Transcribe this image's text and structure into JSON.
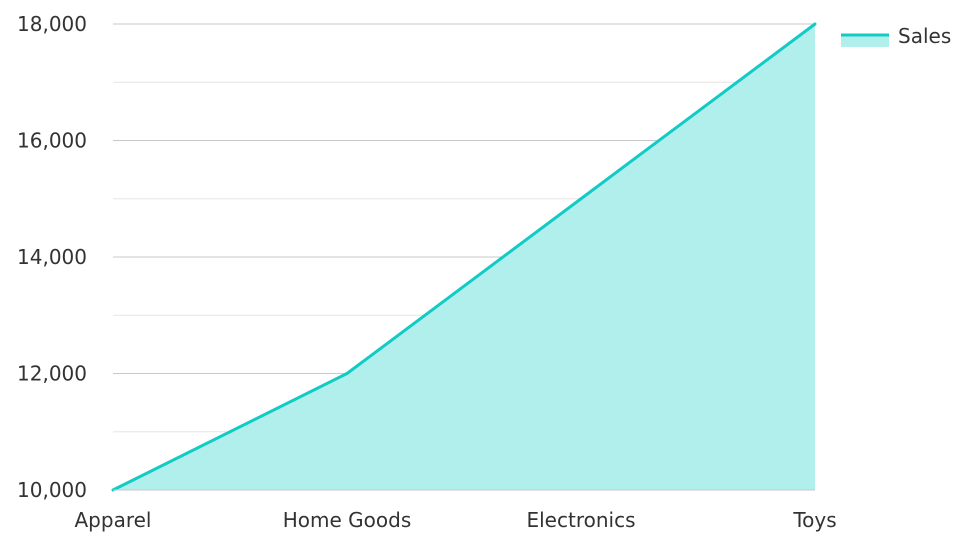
{
  "chart_data": {
    "type": "area",
    "categories": [
      "Apparel",
      "Home Goods",
      "Electronics",
      "Toys"
    ],
    "series": [
      {
        "name": "Sales",
        "values": [
          10000,
          12000,
          15000,
          18000
        ],
        "color": "#12cbc4",
        "fill": "#b1efed"
      }
    ],
    "title": "",
    "xlabel": "",
    "ylabel": "",
    "ylim": [
      10000,
      18000
    ],
    "yticks": [
      10000,
      12000,
      14000,
      16000,
      18000
    ],
    "ytick_labels": [
      "10,000",
      "12,000",
      "14,000",
      "16,000",
      "18,000"
    ],
    "grid": true,
    "legend": "top-right"
  }
}
